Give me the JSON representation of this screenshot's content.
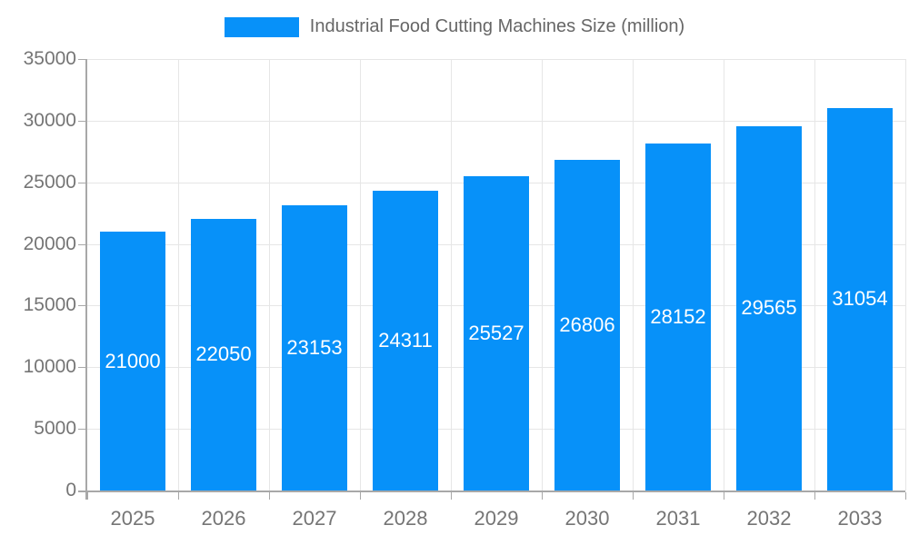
{
  "legend": {
    "label": "Industrial Food Cutting Machines Size (million)"
  },
  "colors": {
    "bar": "#0791f9",
    "value_label": "#ffffff",
    "axis": "#a8a8a8",
    "grid": "#e6e6e6",
    "tick_text": "#757575",
    "legend_text": "#666666"
  },
  "chart_data": {
    "type": "bar",
    "title": "Industrial Food Cutting Machines Size (million)",
    "categories": [
      "2025",
      "2026",
      "2027",
      "2028",
      "2029",
      "2030",
      "2031",
      "2032",
      "2033"
    ],
    "values": [
      21000,
      22050,
      23153,
      24311,
      25527,
      26806,
      28152,
      29565,
      31054
    ],
    "value_labels": [
      "21000",
      "22050",
      "23153",
      "24311",
      "25527",
      "26806",
      "28152",
      "29565",
      "31054"
    ],
    "xlabel": "",
    "ylabel": "",
    "ylim": [
      0,
      35000
    ],
    "ytick_step": 5000,
    "ytick_labels": [
      "0",
      "5000",
      "10000",
      "15000",
      "20000",
      "25000",
      "30000",
      "35000"
    ],
    "grid": true,
    "legend_position": "top",
    "value_labels_inside_bars": true
  }
}
